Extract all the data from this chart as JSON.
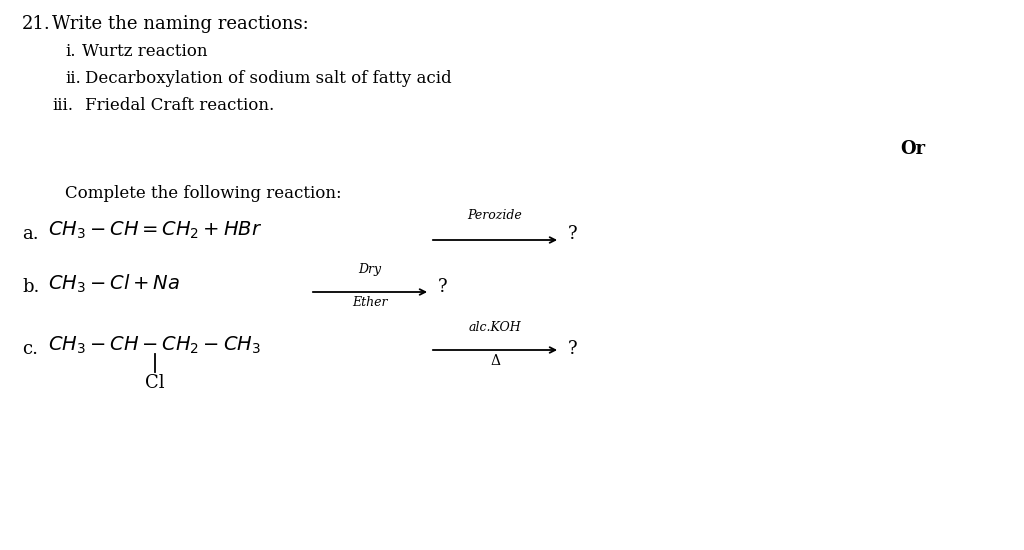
{
  "background_color": "#ffffff",
  "title_text": "21. Write the naming reactions:",
  "items": [
    "i.  Wurtz reaction",
    "ii.  Decarboxylation of sodium salt of fatty acid",
    "iii. Friedal Craft reaction."
  ],
  "or_text": "Or",
  "complete_text": "Complete the following reaction:",
  "font_size_title": 13,
  "font_size_items": 12,
  "font_size_formula": 13,
  "font_size_arrow_label": 9,
  "font_size_or": 13
}
